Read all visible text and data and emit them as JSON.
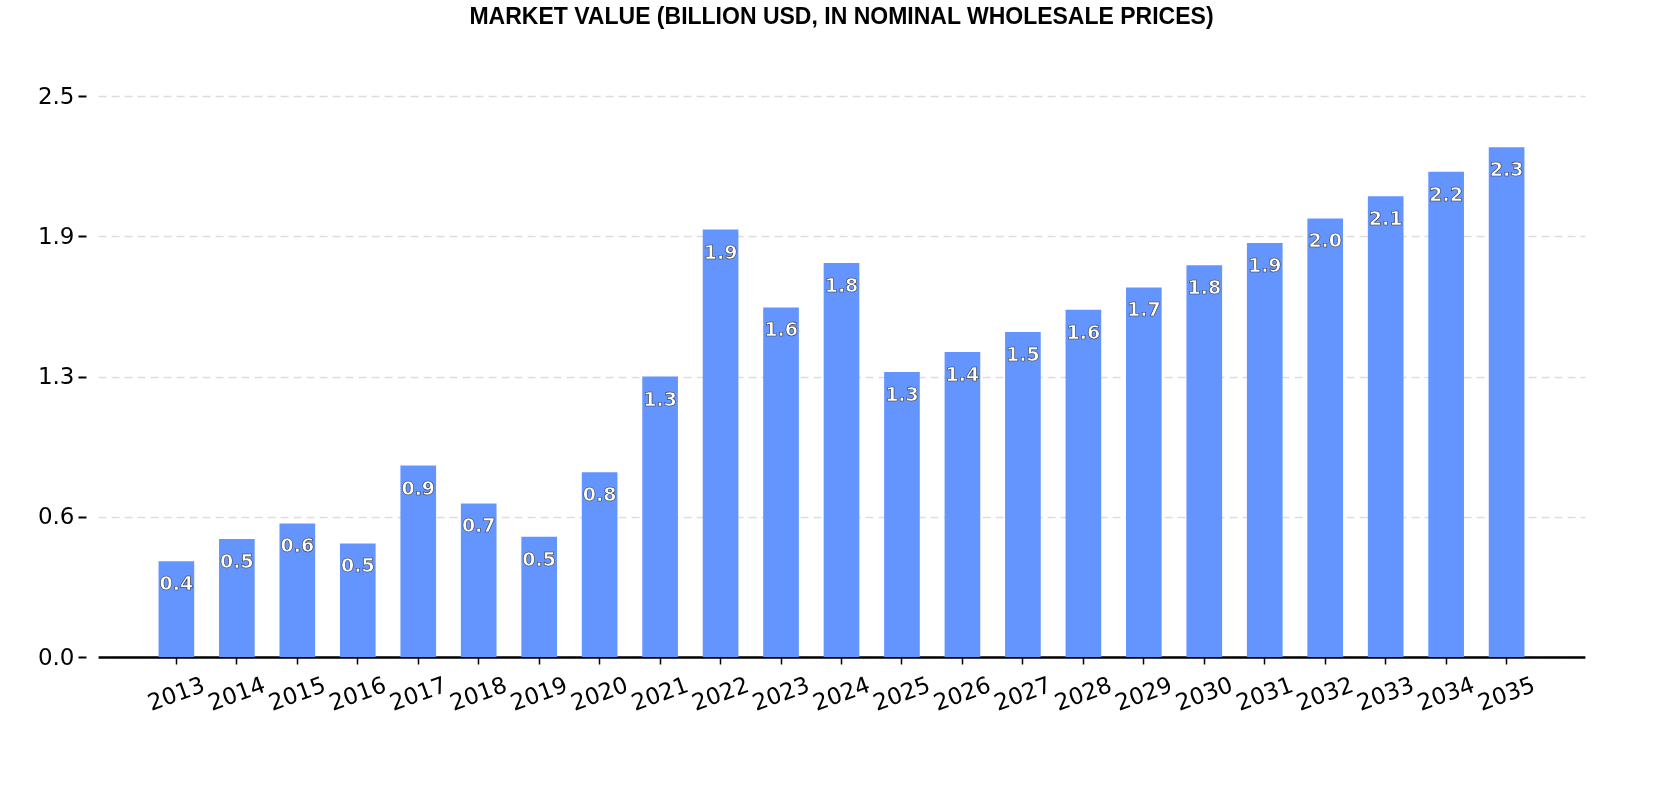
{
  "chart_data": {
    "type": "bar",
    "title": "MARKET VALUE (BILLION USD, IN NOMINAL WHOLESALE PRICES)",
    "categories": [
      "2013",
      "2014",
      "2015",
      "2016",
      "2017",
      "2018",
      "2019",
      "2020",
      "2021",
      "2022",
      "2023",
      "2024",
      "2025",
      "2026",
      "2027",
      "2028",
      "2029",
      "2030",
      "2031",
      "2032",
      "2033",
      "2034",
      "2035"
    ],
    "values": [
      0.43,
      0.53,
      0.6,
      0.51,
      0.86,
      0.69,
      0.54,
      0.83,
      1.26,
      1.92,
      1.57,
      1.77,
      1.28,
      1.37,
      1.46,
      1.56,
      1.66,
      1.76,
      1.86,
      1.97,
      2.07,
      2.18,
      2.29
    ],
    "value_labels": [
      "0.4",
      "0.5",
      "0.6",
      "0.5",
      "0.9",
      "0.7",
      "0.5",
      "0.8",
      "1.3",
      "1.9",
      "1.6",
      "1.8",
      "1.3",
      "1.4",
      "1.5",
      "1.6",
      "1.7",
      "1.8",
      "1.9",
      "2.0",
      "2.1",
      "2.2",
      "2.3"
    ],
    "color": "#6495ff",
    "ylim": [
      0,
      2.52
    ],
    "yticks": [
      {
        "value": 0,
        "label": "0.0"
      },
      {
        "value": 0.63,
        "label": "0.6"
      },
      {
        "value": 1.26,
        "label": "1.3"
      },
      {
        "value": 1.89,
        "label": "1.9"
      },
      {
        "value": 2.52,
        "label": "2.5"
      }
    ],
    "grid": "y"
  }
}
